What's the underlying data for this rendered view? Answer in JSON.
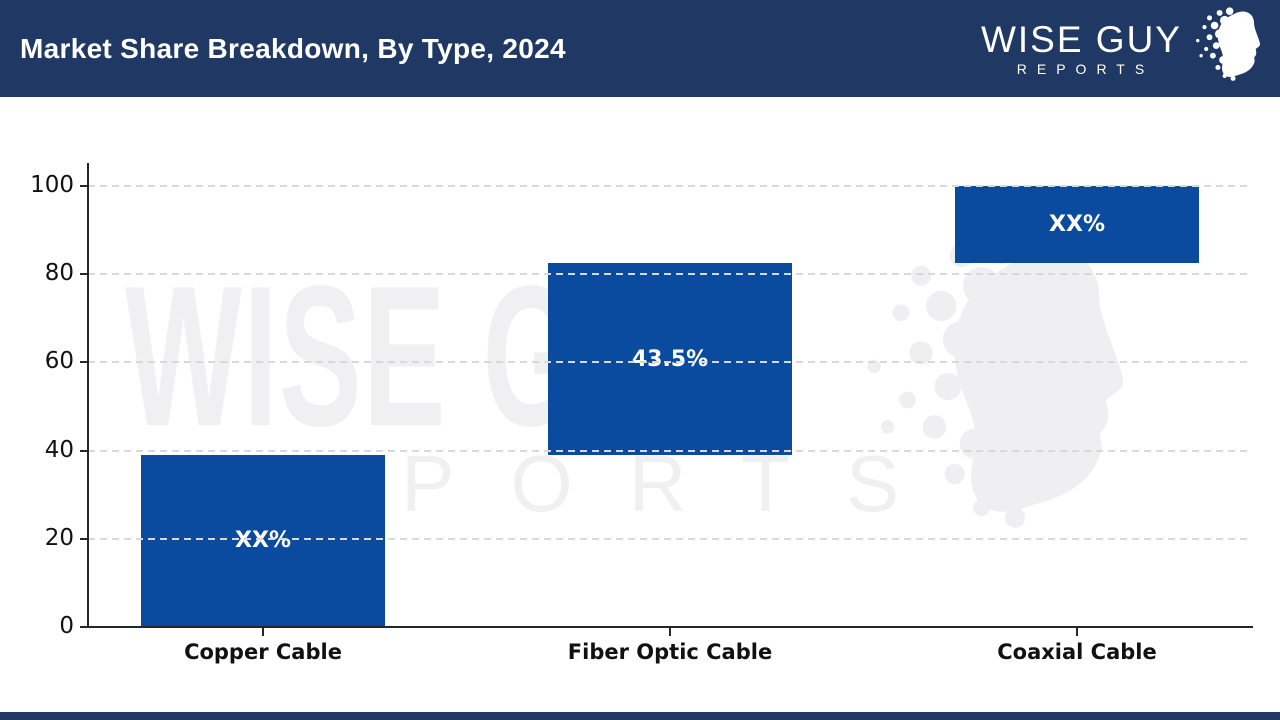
{
  "header": {
    "title": "Market Share Breakdown, By Type, 2024",
    "logo": {
      "name": "WISE GUY",
      "sub": "REPORTS"
    }
  },
  "watermark": {
    "big": "WISE GUY",
    "sub": "REPORTS"
  },
  "colors": {
    "header_bg": "#1f3864",
    "footer_bg": "#1f3864",
    "bar": "#0b4b9f",
    "grid": "#d9d9d9",
    "axis": "#262626",
    "watermark": "#f0f0f3",
    "label_on_bar": "#ffffff"
  },
  "chart_data": {
    "type": "bar",
    "subtype": "waterfall",
    "title": "Market Share Breakdown, By Type, 2024",
    "categories": [
      "Copper Cable",
      "Fiber Optic Cable",
      "Coaxial Cable"
    ],
    "bars": [
      {
        "category": "Copper Cable",
        "start": 0,
        "end": 39,
        "label": "XX%"
      },
      {
        "category": "Fiber Optic Cable",
        "start": 39,
        "end": 82.5,
        "label": "43.5%"
      },
      {
        "category": "Coaxial Cable",
        "start": 82.5,
        "end": 100,
        "label": "XX%"
      }
    ],
    "yticks": [
      0,
      20,
      40,
      60,
      80,
      100
    ],
    "ylim": [
      0,
      105
    ],
    "xlabel": "",
    "ylabel": "",
    "grid": "horizontal-dashed",
    "legend": "none"
  }
}
